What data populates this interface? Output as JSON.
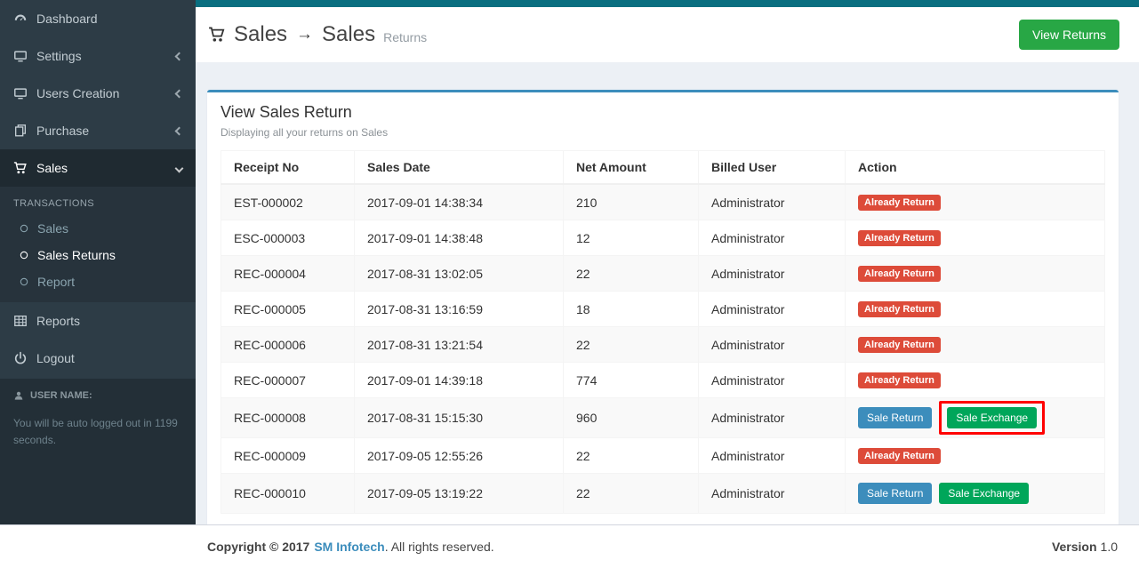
{
  "colors": {
    "top_strip": "#0a6f80",
    "sidebar_bg": "#2d3c46",
    "sidebar_active_bg": "#1f2a31",
    "submenu_bg": "#27333c",
    "accent_blue": "#3c8dbc",
    "view_returns_green": "#28a745",
    "already_return_red": "#dd4b39",
    "sale_return_blue": "#3c8dbc",
    "sale_exchange_green": "#00a65a",
    "annotation_red": "#ff0000",
    "content_bg": "#ecf0f5"
  },
  "sidebar": {
    "items": [
      {
        "label": "Dashboard",
        "icon": "dashboard-icon",
        "chevron": null,
        "active": false
      },
      {
        "label": "Settings",
        "icon": "monitor-icon",
        "chevron": "left",
        "active": false
      },
      {
        "label": "Users Creation",
        "icon": "monitor-icon",
        "chevron": "left",
        "active": false
      },
      {
        "label": "Purchase",
        "icon": "copy-icon",
        "chevron": "left",
        "active": false
      },
      {
        "label": "Sales",
        "icon": "cart-icon",
        "chevron": "down",
        "active": true
      }
    ],
    "section_label": "TRANSACTIONS",
    "sub_items": [
      {
        "label": "Sales",
        "icon": "circle-o-icon",
        "active": false
      },
      {
        "label": "Sales Returns",
        "icon": "circle-o-icon",
        "active": true
      },
      {
        "label": "Report",
        "icon": "circle-o-icon",
        "active": false
      }
    ],
    "lower_items": [
      {
        "label": "Reports",
        "icon": "table-icon",
        "chevron": null,
        "active": false
      },
      {
        "label": "Logout",
        "icon": "power-icon",
        "chevron": null,
        "active": false
      }
    ],
    "user_icon": "user-icon",
    "user_label": "USER NAME:",
    "logout_notice": "You will be auto logged out in 1199 seconds."
  },
  "header": {
    "breadcrumb": {
      "icon": "cart-icon",
      "section": "Sales",
      "arrow": "→",
      "page": "Sales",
      "page_sub": "Returns"
    },
    "view_returns_button": "View Returns"
  },
  "panel": {
    "title": "View Sales Return",
    "subtitle": "Displaying all your returns on Sales"
  },
  "table": {
    "columns": [
      "Receipt No",
      "Sales Date",
      "Net Amount",
      "Billed User",
      "Action"
    ],
    "rows": [
      {
        "receipt_no": "EST-000002",
        "sales_date": "2017-09-01 14:38:34",
        "net_amount": "210",
        "billed_user": "Administrator",
        "action": "already_return",
        "highlighted": false
      },
      {
        "receipt_no": "ESC-000003",
        "sales_date": "2017-09-01 14:38:48",
        "net_amount": "12",
        "billed_user": "Administrator",
        "action": "already_return",
        "highlighted": false
      },
      {
        "receipt_no": "REC-000004",
        "sales_date": "2017-08-31 13:02:05",
        "net_amount": "22",
        "billed_user": "Administrator",
        "action": "already_return",
        "highlighted": false
      },
      {
        "receipt_no": "REC-000005",
        "sales_date": "2017-08-31 13:16:59",
        "net_amount": "18",
        "billed_user": "Administrator",
        "action": "already_return",
        "highlighted": false
      },
      {
        "receipt_no": "REC-000006",
        "sales_date": "2017-08-31 13:21:54",
        "net_amount": "22",
        "billed_user": "Administrator",
        "action": "already_return",
        "highlighted": false
      },
      {
        "receipt_no": "REC-000007",
        "sales_date": "2017-09-01 14:39:18",
        "net_amount": "774",
        "billed_user": "Administrator",
        "action": "already_return",
        "highlighted": false
      },
      {
        "receipt_no": "REC-000008",
        "sales_date": "2017-08-31 15:15:30",
        "net_amount": "960",
        "billed_user": "Administrator",
        "action": "return_exchange",
        "highlighted": true
      },
      {
        "receipt_no": "REC-000009",
        "sales_date": "2017-09-05 12:55:26",
        "net_amount": "22",
        "billed_user": "Administrator",
        "action": "already_return",
        "highlighted": false
      },
      {
        "receipt_no": "REC-000010",
        "sales_date": "2017-09-05 13:19:22",
        "net_amount": "22",
        "billed_user": "Administrator",
        "action": "return_exchange",
        "highlighted": false
      }
    ]
  },
  "actions": {
    "already_return": "Already Return",
    "sale_return": "Sale Return",
    "sale_exchange": "Sale Exchange"
  },
  "footer": {
    "copyright_bold": "Copyright © 2017",
    "company": "SM Infotech",
    "rights": ". All rights reserved.",
    "version_label": "Version",
    "version_value": "1.0"
  }
}
